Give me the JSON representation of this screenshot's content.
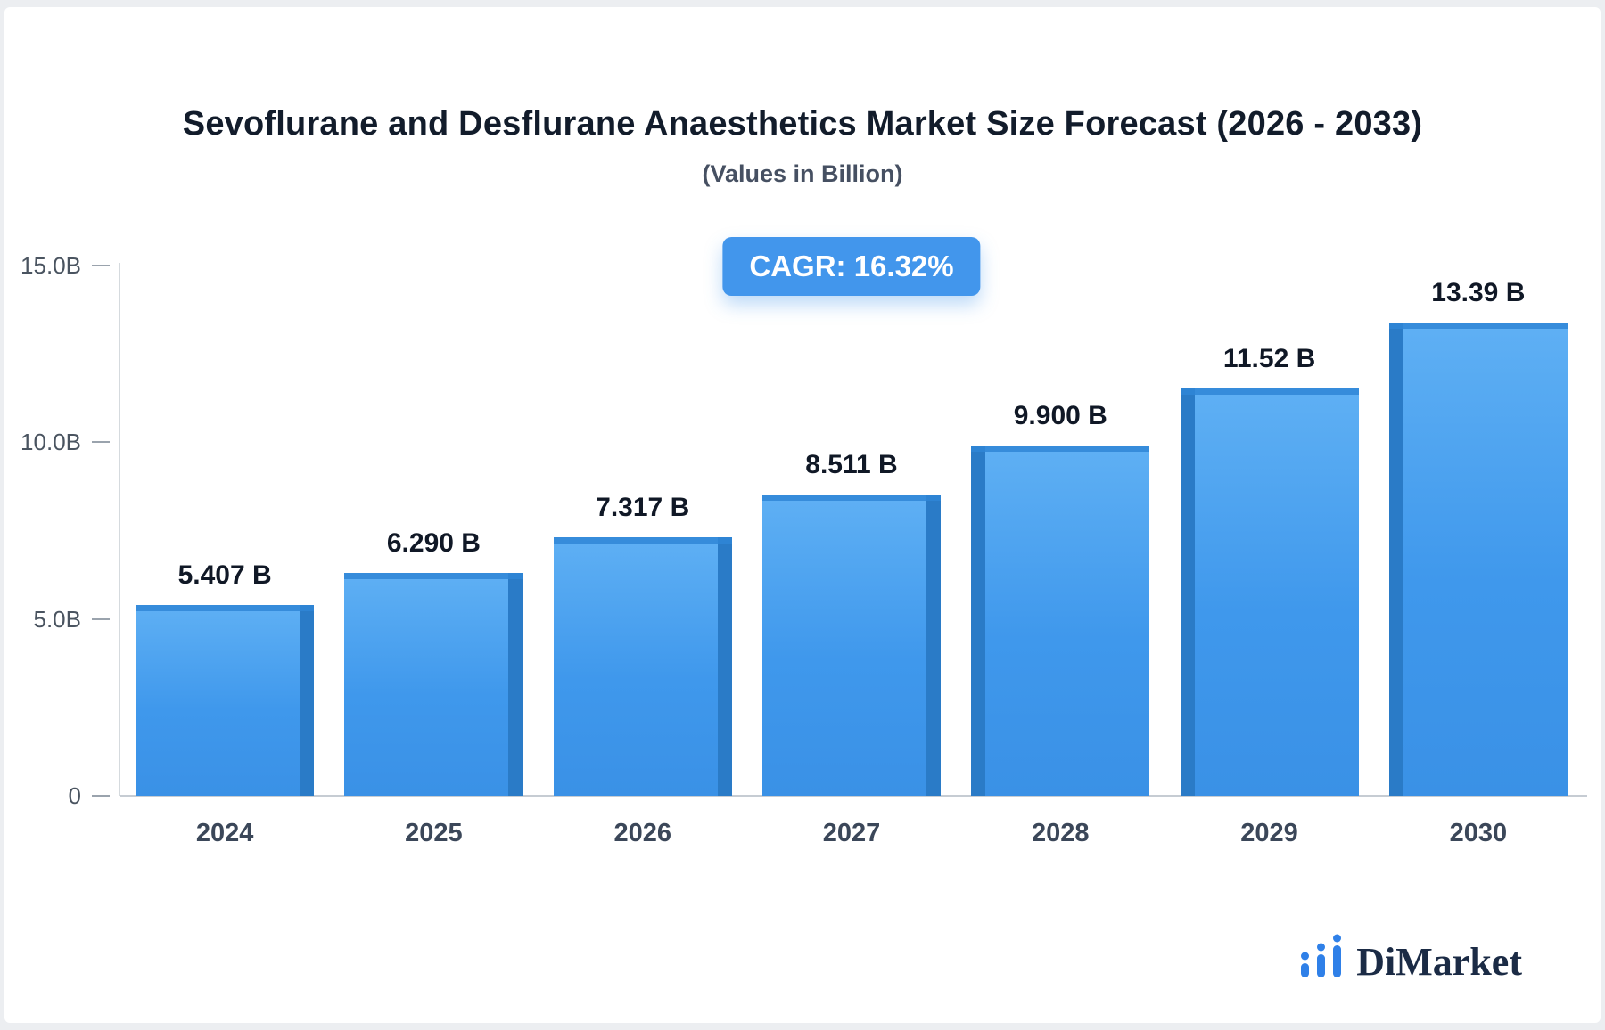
{
  "header": {
    "title": "Sevoflurane and Desflurane Anaesthetics Market Size Forecast (2026 - 2033)",
    "subtitle": "(Values in Billion)"
  },
  "badge": {
    "label": "CAGR: 16.32%",
    "color": "#4296ec"
  },
  "chart_data": {
    "type": "bar",
    "title": "Sevoflurane and Desflurane Anaesthetics Market Size Forecast (2026 - 2033)",
    "subtitle": "(Values in Billion)",
    "categories": [
      "2024",
      "2025",
      "2026",
      "2027",
      "2028",
      "2029",
      "2030"
    ],
    "values": [
      5.407,
      6.29,
      7.317,
      8.511,
      9.9,
      11.52,
      13.39
    ],
    "value_labels": [
      "5.407 B",
      "6.290 B",
      "7.317 B",
      "8.511 B",
      "9.900 B",
      "11.52 B",
      "13.39 B"
    ],
    "cagr": "CAGR: 16.32%",
    "xlabel": "",
    "ylabel": "",
    "ylim": [
      0,
      15
    ],
    "y_ticks": [
      {
        "value": 0,
        "label": "0"
      },
      {
        "value": 5,
        "label": "5.0B"
      },
      {
        "value": 10,
        "label": "10.0B"
      },
      {
        "value": 15,
        "label": "15.0B"
      }
    ],
    "grid": false,
    "legend": false,
    "bar_color": "#3f98ec",
    "bar_side_color": "#2a7bc7"
  },
  "logo": {
    "text": "DiMarket"
  }
}
